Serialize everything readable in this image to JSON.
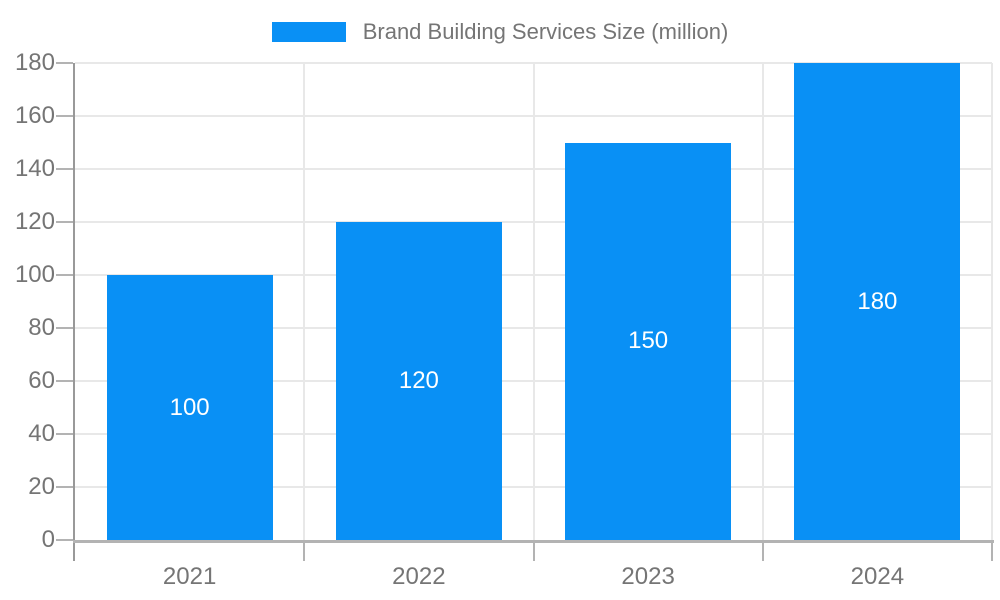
{
  "chart_data": {
    "type": "bar",
    "categories": [
      "2021",
      "2022",
      "2023",
      "2024"
    ],
    "series": [
      {
        "name": "Brand Building Services Size (million)",
        "values": [
          100,
          120,
          150,
          180
        ]
      }
    ],
    "data_labels": [
      "100",
      "120",
      "150",
      "180"
    ],
    "ylim": [
      0,
      180
    ],
    "ytick_step": 20,
    "yticks": [
      "0",
      "20",
      "40",
      "60",
      "80",
      "100",
      "120",
      "140",
      "160",
      "180"
    ],
    "grid": true,
    "legend_position": "top-center",
    "colors": {
      "bar": "#0990f5",
      "grid_line": "#e8e8e8",
      "tick_line": "#b3b3b3",
      "y_axis_line": "#999999",
      "x_axis_line": "#b3b3b3",
      "label_text": "#757575",
      "bar_label_text": "#ffffff",
      "background": "#ffffff"
    }
  }
}
